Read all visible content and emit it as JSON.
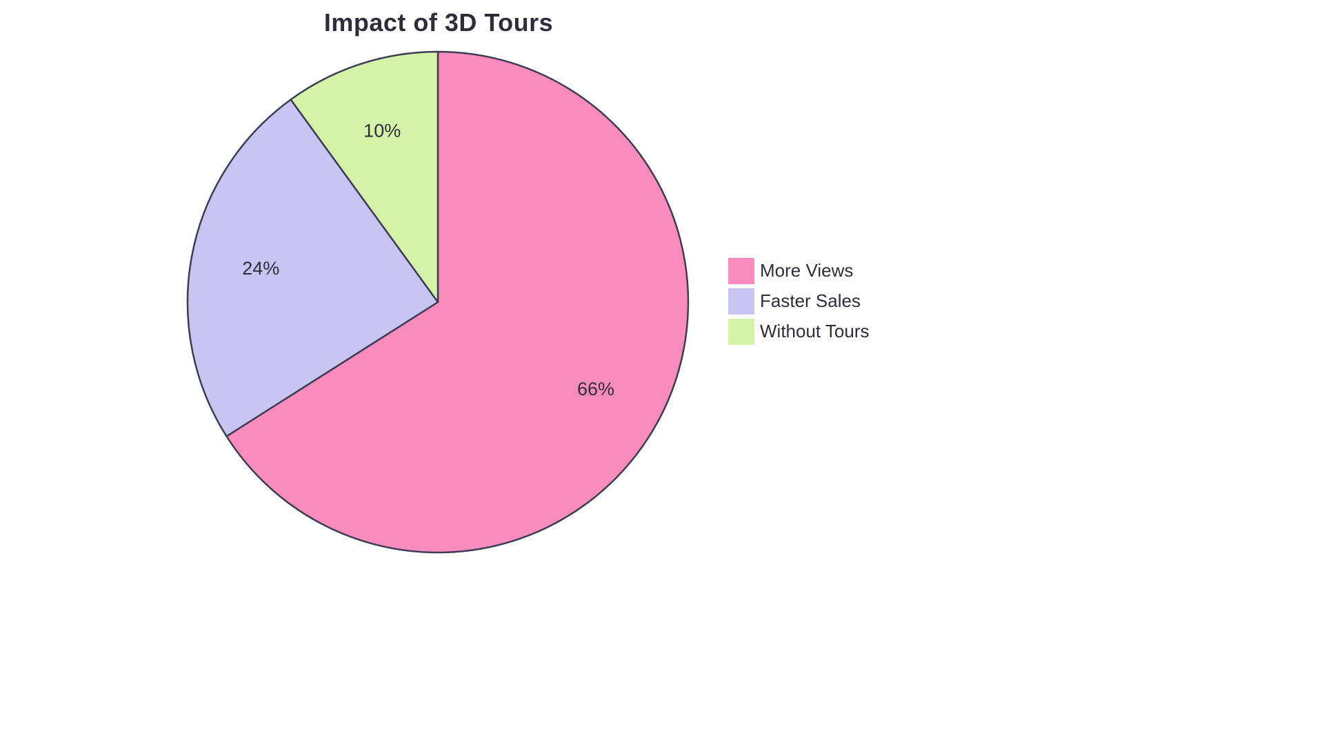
{
  "chart_data": {
    "type": "pie",
    "title": "Impact of 3D Tours",
    "labels": [
      "More Views",
      "Faster Sales",
      "Without Tours"
    ],
    "values": [
      66,
      24,
      10
    ],
    "percent_labels": [
      "66%",
      "24%",
      "10%"
    ],
    "colors": [
      "#f98cbc",
      "#c9c5f2",
      "#d4f2a8"
    ],
    "outline_color": "#3c3c55",
    "label_color": "#2e2e3a",
    "legend_position": "right",
    "start_angle": "top",
    "direction": "clockwise"
  }
}
